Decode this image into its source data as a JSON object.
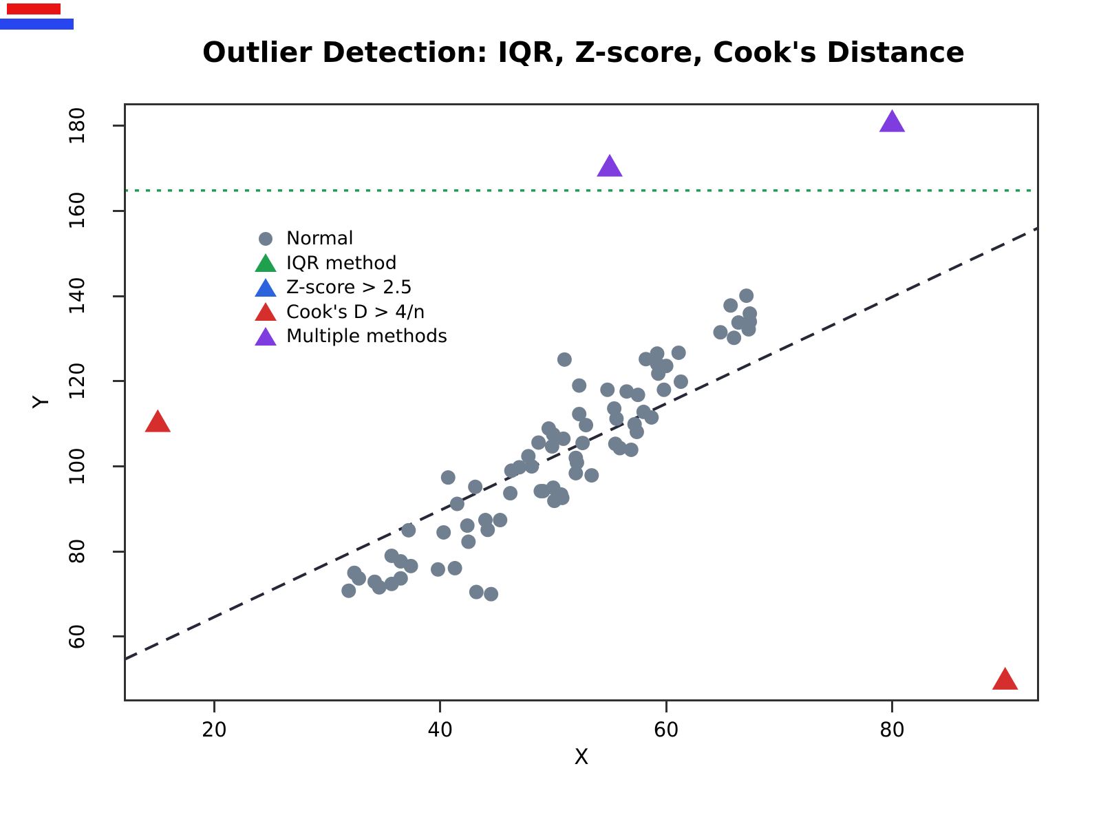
{
  "artifacts": {
    "red_bar": true,
    "blue_bar": true
  },
  "chart_data": {
    "type": "scatter",
    "title": "Outlier Detection: IQR, Z-score, Cook's Distance",
    "xlabel": "X",
    "ylabel": "Y",
    "x_range": [
      12,
      93
    ],
    "y_range": [
      44.8,
      185.3
    ],
    "x_ticks": [
      20,
      40,
      60,
      80
    ],
    "y_ticks": [
      60,
      80,
      100,
      120,
      140,
      160,
      180
    ],
    "grid": false,
    "legend_position": "top-left",
    "series": [
      {
        "key": "normal",
        "name": "Normal",
        "marker": "circle",
        "color": "#708090",
        "points": [
          [
            31.9,
            70.8
          ],
          [
            32.4,
            75
          ],
          [
            32.8,
            73.7
          ],
          [
            34.2,
            72.9
          ],
          [
            34.6,
            71.6
          ],
          [
            35.7,
            72.4
          ],
          [
            36.5,
            73.7
          ],
          [
            35.7,
            79
          ],
          [
            36.5,
            77.7
          ],
          [
            37.4,
            76.6
          ],
          [
            39.8,
            75.8
          ],
          [
            41.3,
            76.1
          ],
          [
            43.2,
            70.5
          ],
          [
            44.5,
            70
          ],
          [
            37.2,
            85
          ],
          [
            40.3,
            84.5
          ],
          [
            42.5,
            82.3
          ],
          [
            42.4,
            86.1
          ],
          [
            44,
            87.4
          ],
          [
            44.2,
            85.1
          ],
          [
            45.3,
            87.4
          ],
          [
            46.2,
            93.7
          ],
          [
            48.9,
            94.2
          ],
          [
            43.1,
            95.2
          ],
          [
            41.5,
            91.2
          ],
          [
            40.7,
            97.4
          ],
          [
            49.1,
            94.2
          ],
          [
            46.3,
            99
          ],
          [
            47,
            99.8
          ],
          [
            48.1,
            100
          ],
          [
            47.8,
            102.4
          ],
          [
            48.7,
            105.6
          ],
          [
            49.6,
            108.9
          ],
          [
            50,
            107.5
          ],
          [
            49.9,
            104.7
          ],
          [
            50.9,
            106.5
          ],
          [
            50.1,
            91.9
          ],
          [
            50.8,
            92.6
          ],
          [
            50,
            95
          ],
          [
            50.7,
            93.4
          ],
          [
            52,
            98.4
          ],
          [
            53.4,
            97.9
          ],
          [
            52,
            102
          ],
          [
            52.1,
            100.9
          ],
          [
            52.6,
            105.5
          ],
          [
            52.9,
            109.7
          ],
          [
            52.3,
            112.3
          ],
          [
            52.3,
            119
          ],
          [
            51,
            125.1
          ],
          [
            54.8,
            118
          ],
          [
            55.4,
            113.6
          ],
          [
            55.6,
            111.2
          ],
          [
            56.5,
            117.6
          ],
          [
            57.5,
            116.8
          ],
          [
            55.5,
            105.3
          ],
          [
            55.9,
            104.3
          ],
          [
            56.9,
            103.9
          ],
          [
            57.2,
            109.9
          ],
          [
            57.4,
            108.1
          ],
          [
            58,
            112.8
          ],
          [
            58.7,
            111.5
          ],
          [
            58.2,
            125.2
          ],
          [
            59.2,
            126.5
          ],
          [
            61.1,
            126.7
          ],
          [
            59.2,
            124.1
          ],
          [
            60,
            123.6
          ],
          [
            59.3,
            121.8
          ],
          [
            61.3,
            119.9
          ],
          [
            59.8,
            118
          ],
          [
            67.1,
            140.1
          ],
          [
            65.7,
            137.8
          ],
          [
            67.4,
            135.9
          ],
          [
            66.4,
            133.8
          ],
          [
            67.4,
            134
          ],
          [
            67.3,
            132.2
          ],
          [
            64.8,
            131.5
          ],
          [
            66,
            130.2
          ]
        ]
      },
      {
        "key": "iqr",
        "name": "IQR method",
        "marker": "triangle",
        "color": "#1fa04e",
        "points": []
      },
      {
        "key": "zscore",
        "name": "Z-score > 2.5",
        "marker": "triangle",
        "color": "#2b64dc",
        "points": []
      },
      {
        "key": "cook",
        "name": "Cook's D > 4/n",
        "marker": "triangle",
        "color": "#d62d2d",
        "points": [
          [
            15,
            110.5
          ],
          [
            90,
            50
          ]
        ]
      },
      {
        "key": "multiple",
        "name": "Multiple methods",
        "marker": "triangle",
        "color": "#7f3de0",
        "points": [
          [
            55,
            170.5
          ],
          [
            80,
            181
          ]
        ]
      }
    ],
    "regression_line": {
      "x1": 12,
      "y1": 54.6,
      "x2": 93,
      "y2": 156.1,
      "style": "dashed",
      "color": "#262838"
    },
    "threshold_line": {
      "y": 164.8,
      "style": "dotted",
      "color": "#1fa04e"
    }
  }
}
